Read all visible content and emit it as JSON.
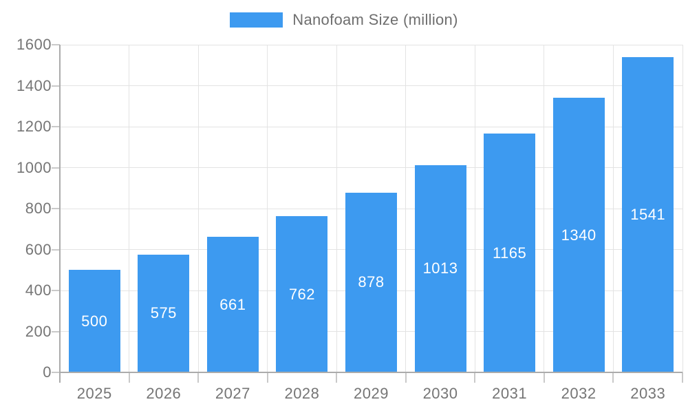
{
  "legend": {
    "label": "Nanofoam Size (million)"
  },
  "colors": {
    "bar": "#3d9af0",
    "bar_label": "#ffffff",
    "axis_line": "#ababab",
    "gridline": "#e3e3e3",
    "tick": "#c9c9c9",
    "axis_label": "#757575",
    "legend_text": "#6e6e6e",
    "background": "#ffffff"
  },
  "chart_data": {
    "type": "bar",
    "title": "",
    "xlabel": "",
    "ylabel": "",
    "legend_entries": [
      "Nanofoam Size (million)"
    ],
    "legend_position": "top-center",
    "categories": [
      "2025",
      "2026",
      "2027",
      "2028",
      "2029",
      "2030",
      "2031",
      "2032",
      "2033"
    ],
    "values": [
      500,
      575,
      661,
      762,
      878,
      1013,
      1165,
      1340,
      1541
    ],
    "ylim": [
      0,
      1600
    ],
    "ytick_step": 200,
    "yticks": [
      0,
      200,
      400,
      600,
      800,
      1000,
      1200,
      1400,
      1600
    ],
    "grid": true,
    "value_labels": "inside-center"
  }
}
